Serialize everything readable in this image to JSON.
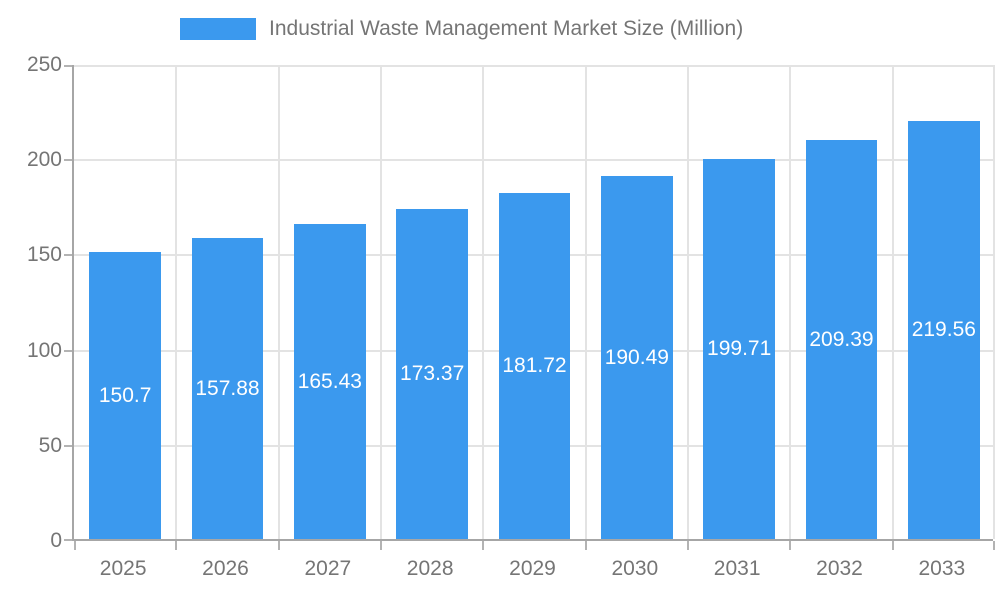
{
  "legend": {
    "label": "Industrial Waste Management Market Size (Million)"
  },
  "chart_data": {
    "type": "bar",
    "title": "Industrial Waste Management Market Size (Million)",
    "categories": [
      "2025",
      "2026",
      "2027",
      "2028",
      "2029",
      "2030",
      "2031",
      "2032",
      "2033"
    ],
    "values": [
      150.7,
      157.88,
      165.43,
      173.37,
      181.72,
      190.49,
      199.71,
      209.39,
      219.56
    ],
    "value_labels": [
      "150.7",
      "157.88",
      "165.43",
      "173.37",
      "181.72",
      "190.49",
      "199.71",
      "209.39",
      "219.56"
    ],
    "xlabel": "",
    "ylabel": "",
    "ylim": [
      0,
      250
    ],
    "y_ticks": [
      0,
      50,
      100,
      150,
      200,
      250
    ],
    "grid": true,
    "legend_position": "top",
    "bar_label_position": "inside-center",
    "colors": {
      "bar": "#3B99EE",
      "axis": "#A6A6A6",
      "grid": "#E3E3E3",
      "tick": "#B3B3B3",
      "axis_text": "#757575",
      "legend_text": "#757575",
      "bar_label_text": "#FFFFFF",
      "background": "#FFFFFF"
    }
  }
}
